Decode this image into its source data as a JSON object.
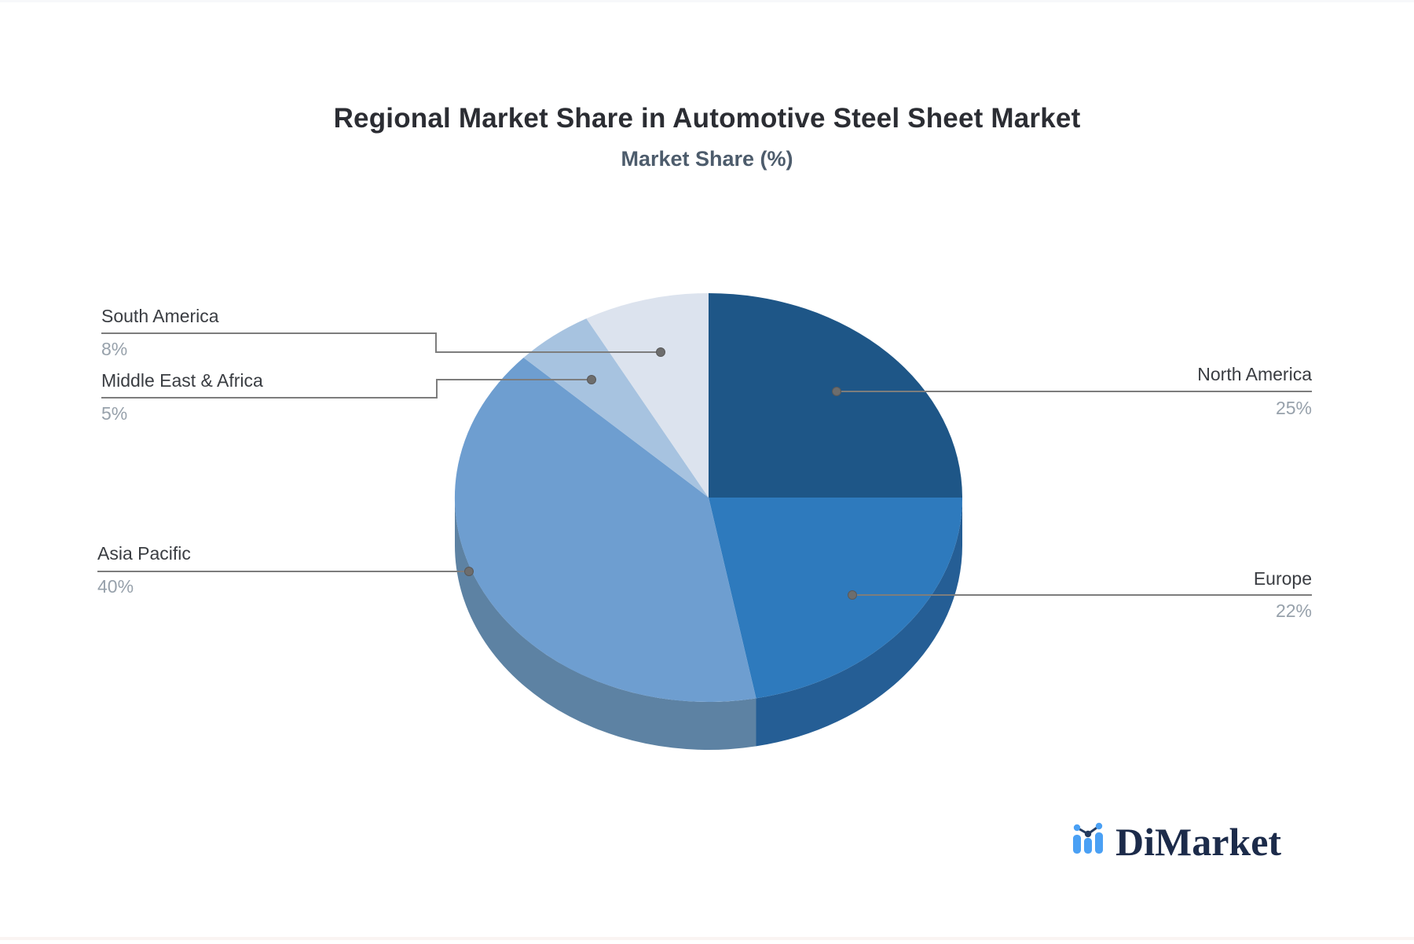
{
  "header": {
    "title": "Regional Market Share in Automotive Steel Sheet Market",
    "subtitle": "Market Share (%)"
  },
  "chart_data": {
    "type": "pie",
    "style_3d": true,
    "title": "Regional Market Share in Automotive Steel Sheet Market",
    "value_axis_label": "Market Share (%)",
    "unit": "%",
    "start_angle": "12-oclock",
    "direction": "clockwise",
    "categories": [
      "North America",
      "Europe",
      "Asia Pacific",
      "Middle East & Africa",
      "South America"
    ],
    "values": [
      25,
      22,
      40,
      5,
      8
    ],
    "value_labels": [
      "25%",
      "22%",
      "40%",
      "5%",
      "8%"
    ],
    "colors": [
      "#1e5687",
      "#2e7abd",
      "#6e9ed0",
      "#a7c3e0",
      "#dce3ee"
    ],
    "rim_colors": [
      "#17436b",
      "#255e95",
      "#5d82a3",
      "#87a5c2",
      "#b8c3d1"
    ],
    "legend_position": "callout-labels",
    "callout_line_color": "#7d7d7d",
    "callout_dot_color": "#6d6d6d",
    "label_color": "#3a3d42",
    "value_color": "#97a1ab"
  },
  "callouts": [
    {
      "label": "North America",
      "value": "25%"
    },
    {
      "label": "Europe",
      "value": "22%"
    },
    {
      "label": "Asia Pacific",
      "value": "40%"
    },
    {
      "label": "South America",
      "value": "8%"
    },
    {
      "label": "Middle East & Africa",
      "value": "5%"
    }
  ],
  "watermark": {
    "brand": "DiMarket",
    "icon": "bar-chart-sparkline-logo-icon",
    "icon_color": "#4aa0f4",
    "text_color": "#1c2b4a"
  }
}
